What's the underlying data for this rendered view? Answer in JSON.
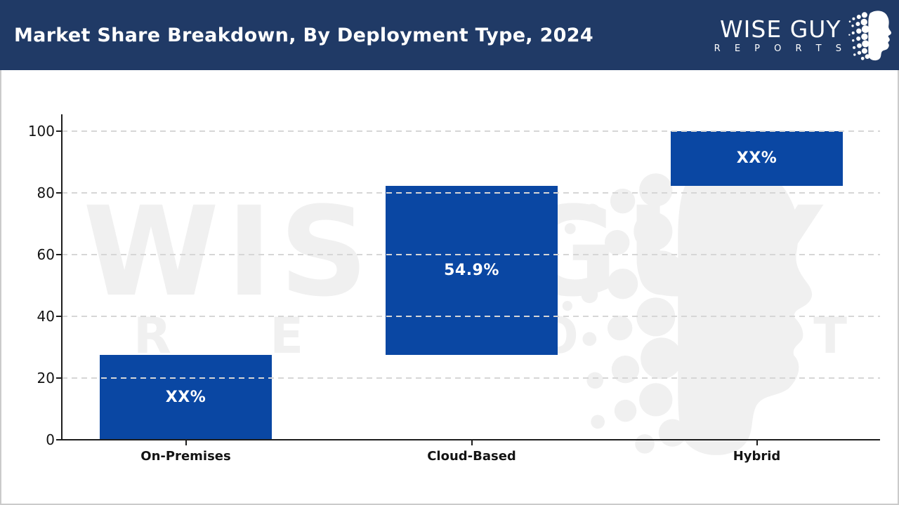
{
  "header": {
    "title": "Market Share Breakdown, By Deployment Type, 2024",
    "logo": {
      "brand_top": "WISE GUY",
      "brand_bottom": "R E P O R T S"
    }
  },
  "watermark": {
    "line1": "WISE GUY",
    "line2": "R E P O R T S"
  },
  "colors": {
    "header_bg": "#203a66",
    "bar": "#0a47a3",
    "grid": "#d6d6d6",
    "axis": "#1d1d1d",
    "value_label": "#ffffff",
    "watermark": "#f0f0f0"
  },
  "chart_data": {
    "type": "bar",
    "subtype": "floating-waterfall",
    "title": "Market Share Breakdown, By Deployment Type, 2024",
    "xlabel": "",
    "ylabel": "",
    "categories": [
      "On-Premises",
      "Cloud-Based",
      "Hybrid"
    ],
    "segments": [
      {
        "category": "On-Premises",
        "start": 0,
        "end": 27.4,
        "size": 27.4,
        "label": "XX%"
      },
      {
        "category": "Cloud-Based",
        "start": 27.4,
        "end": 82.3,
        "size": 54.9,
        "label": "54.9%"
      },
      {
        "category": "Hybrid",
        "start": 82.3,
        "end": 100,
        "size": 17.7,
        "label": "XX%"
      }
    ],
    "y_ticks": [
      0,
      20,
      40,
      60,
      80,
      100
    ],
    "ylim": [
      0,
      105
    ],
    "grid": "dashed-horizontal-over-bars",
    "legend": "none"
  }
}
